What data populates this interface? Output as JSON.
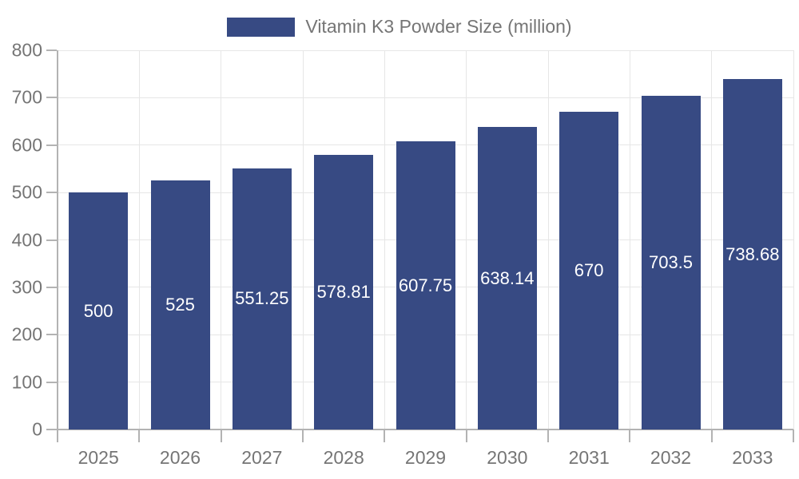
{
  "chart_data": {
    "type": "bar",
    "title": "Vitamin K3 Powder Size (million)",
    "categories": [
      "2025",
      "2026",
      "2027",
      "2028",
      "2029",
      "2030",
      "2031",
      "2032",
      "2033"
    ],
    "values": [
      500,
      525,
      551.25,
      578.81,
      607.75,
      638.14,
      670,
      703.5,
      738.68
    ],
    "value_labels": [
      "500",
      "525",
      "551.25",
      "578.81",
      "607.75",
      "638.14",
      "670",
      "703.5",
      "738.68"
    ],
    "xlabel": "",
    "ylabel": "",
    "ylim": [
      0,
      800
    ],
    "y_ticks": [
      0,
      100,
      200,
      300,
      400,
      500,
      600,
      700,
      800
    ],
    "grid": "on",
    "legend_position": "top-center",
    "colors": {
      "bar": "#374a83",
      "gridline": "#e6e6e6",
      "axis": "#b3b3b3",
      "tick_text": "#757575",
      "bar_label_text": "#ffffff",
      "background": "#ffffff"
    }
  }
}
